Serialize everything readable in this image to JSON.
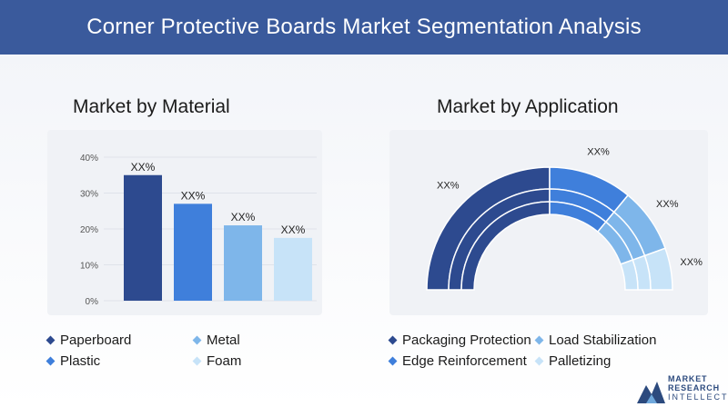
{
  "header": {
    "title": "Corner Protective Boards Market Segmentation Analysis"
  },
  "material": {
    "title": "Market by Material",
    "legend": [
      {
        "label": "Paperboard",
        "color": "#2d4a8f"
      },
      {
        "label": "Metal",
        "color": "#7eb6ea"
      },
      {
        "label": "Plastic",
        "color": "#3f7fdb"
      },
      {
        "label": "Foam",
        "color": "#c7e3f8"
      }
    ]
  },
  "application": {
    "title": "Market by Application",
    "legend": [
      {
        "label": "Packaging Protection",
        "color": "#2d4a8f"
      },
      {
        "label": "Load Stabilization",
        "color": "#7eb6ea"
      },
      {
        "label": "Edge Reinforcement",
        "color": "#3f7fdb"
      },
      {
        "label": "Palletizing",
        "color": "#c7e3f8"
      }
    ]
  },
  "chart_data": [
    {
      "type": "bar",
      "title": "Market by Material",
      "categories": [
        "Paperboard",
        "Plastic",
        "Metal",
        "Foam"
      ],
      "values": [
        35,
        27,
        21,
        17.5
      ],
      "data_labels": [
        "XX%",
        "XX%",
        "XX%",
        "XX%"
      ],
      "colors": [
        "#2d4a8f",
        "#3f7fdb",
        "#7eb6ea",
        "#c7e3f8"
      ],
      "yticks": [
        "0%",
        "10%",
        "20%",
        "30%",
        "40%"
      ],
      "ylim": [
        0,
        40
      ],
      "grid": true
    },
    {
      "type": "pie",
      "style": "semi-donut",
      "title": "Market by Application",
      "categories": [
        "Packaging Protection",
        "Edge Reinforcement",
        "Load Stabilization",
        "Palletizing"
      ],
      "values": [
        50,
        22,
        17,
        11
      ],
      "data_labels": [
        "XX%",
        "XX%",
        "XX%",
        "XX%"
      ],
      "colors": [
        "#2d4a8f",
        "#3f7fdb",
        "#7eb6ea",
        "#c7e3f8"
      ]
    }
  ],
  "logo": {
    "line1": "MARKET",
    "line2": "RESEARCH",
    "line3": "INTELLECT"
  }
}
